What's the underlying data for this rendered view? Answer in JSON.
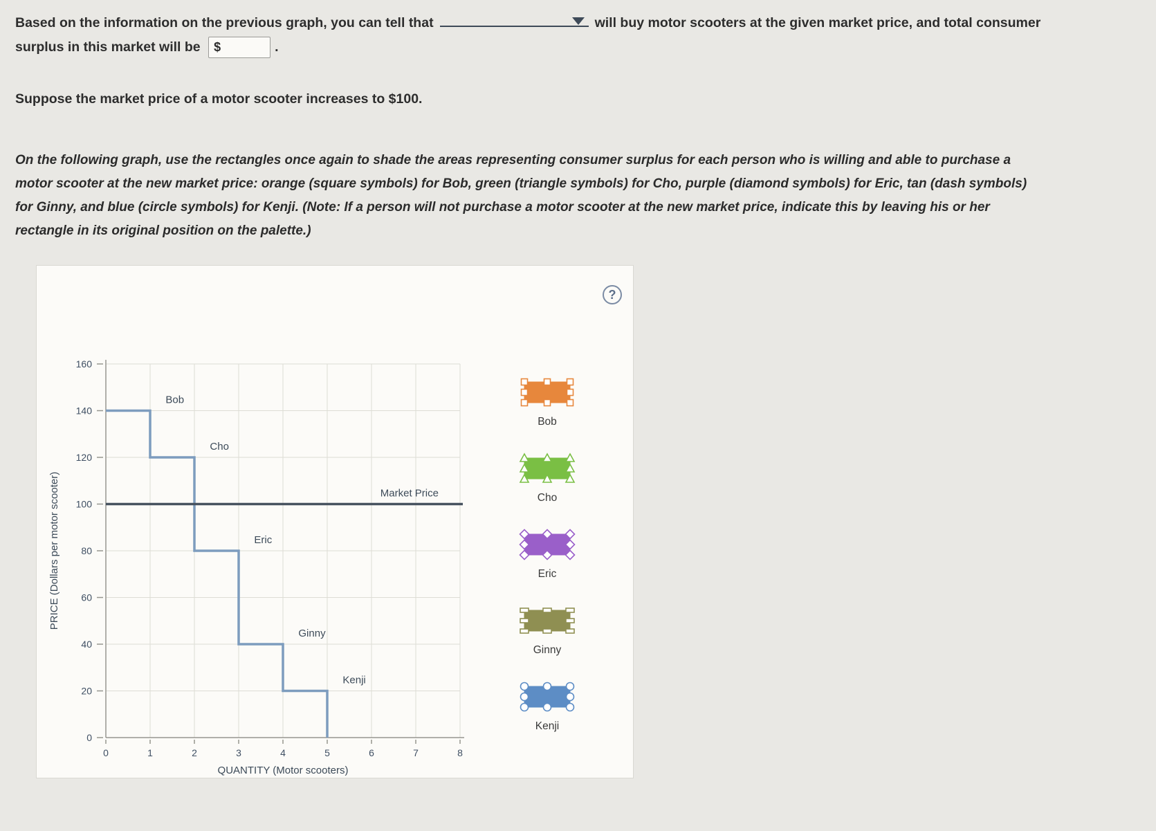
{
  "colors": {
    "page_bg": "#e9e8e4",
    "card_bg": "#fcfbf8",
    "card_border": "#d9d8d2",
    "text": "#2d2d2d",
    "underline": "#3e4a58",
    "grid": "#dddcd5",
    "axis_line": "#96968f",
    "tick_text": "#3f4f63",
    "step_line": "#7d9cbe",
    "market_line": "#47525f",
    "help_icon": "#7b8ba4"
  },
  "question": {
    "lead": "Based on the information on the previous graph, you can tell that",
    "after_blank": "will buy motor scooters at the given market price, and total consumer surplus in this market will be",
    "currency": "$",
    "input_value": "",
    "period": ".",
    "followup": "Suppose the market price of a motor scooter increases to $100."
  },
  "instructions": {
    "segments": [
      {
        "text": "On the following graph, use the rectangles once again to shade the areas representing consumer surplus for each person who is willing and able to purchase a motor scooter at the new market price: orange (square symbols) for Bob, green (triangle symbols) for Cho, purple (diamond symbols) for Eric, tan (dash symbols) for Ginny, and blue (circle symbols) for Kenji. (",
        "bold": false
      },
      {
        "text": "Note:",
        "bold": true
      },
      {
        "text": " If a person will ",
        "bold": false
      },
      {
        "text": "not",
        "bold": true
      },
      {
        "text": " purchase a motor scooter at the new market price, indicate this by leaving his or her rectangle in its original position on the palette.)",
        "bold": false
      }
    ]
  },
  "help": {
    "label": "?"
  },
  "chart_data": {
    "type": "step",
    "title": "",
    "xlabel": "QUANTITY (Motor scooters)",
    "ylabel": "PRICE (Dollars per motor scooter)",
    "xlim": [
      0,
      8
    ],
    "ylim": [
      0,
      160
    ],
    "xticks": [
      0,
      1,
      2,
      3,
      4,
      5,
      6,
      7,
      8
    ],
    "yticks": [
      0,
      20,
      40,
      60,
      80,
      100,
      120,
      140,
      160
    ],
    "grid": true,
    "series": [
      {
        "name": "Bob",
        "x_from": 0,
        "x_to": 1,
        "price": 140
      },
      {
        "name": "Cho",
        "x_from": 1,
        "x_to": 2,
        "price": 120
      },
      {
        "name": "Eric",
        "x_from": 2,
        "x_to": 3,
        "price": 80
      },
      {
        "name": "Ginny",
        "x_from": 3,
        "x_to": 4,
        "price": 40
      },
      {
        "name": "Kenji",
        "x_from": 4,
        "x_to": 5,
        "price": 20
      }
    ],
    "market_price": {
      "label": "Market Price",
      "value": 100,
      "label_x": 6.2
    }
  },
  "palette": {
    "items": [
      {
        "name": "Bob",
        "symbol": "square",
        "color": "#e7873c"
      },
      {
        "name": "Cho",
        "symbol": "triangle",
        "color": "#7abf44"
      },
      {
        "name": "Eric",
        "symbol": "diamond",
        "color": "#9a5fc9"
      },
      {
        "name": "Ginny",
        "symbol": "dash",
        "color": "#8f8f52"
      },
      {
        "name": "Kenji",
        "symbol": "circle",
        "color": "#5d8dc5"
      }
    ]
  }
}
